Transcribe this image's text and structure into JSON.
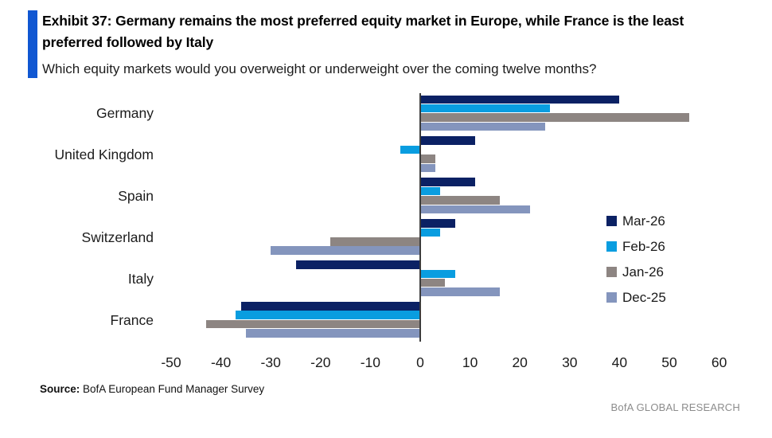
{
  "header": {
    "exhibit_title": "Exhibit 37: Germany remains the most preferred equity market in Europe, while France is the least preferred followed by Italy",
    "subtitle": "Which equity markets would you overweight or underweight over the coming twelve months?",
    "accent_color": "#1057d2"
  },
  "chart_data": {
    "type": "bar",
    "orientation": "horizontal",
    "title": "Exhibit 37: Germany remains the most preferred equity market in Europe, while France is the least preferred followed by Italy",
    "subtitle": "Which equity markets would you overweight or underweight over the coming twelve months?",
    "categories": [
      "Germany",
      "United Kingdom",
      "Spain",
      "Switzerland",
      "Italy",
      "France"
    ],
    "series": [
      {
        "name": "Mar-26",
        "color": "#0b2164",
        "values": [
          40,
          11,
          11,
          7,
          -25,
          -36
        ]
      },
      {
        "name": "Feb-26",
        "color": "#099de0",
        "values": [
          26,
          -4,
          4,
          4,
          7,
          -37
        ]
      },
      {
        "name": "Jan-26",
        "color": "#8d8582",
        "values": [
          54,
          3,
          16,
          -18,
          5,
          -43
        ]
      },
      {
        "name": "Dec-25",
        "color": "#8495bd",
        "values": [
          25,
          3,
          22,
          -30,
          16,
          -35
        ]
      }
    ],
    "x_ticks": [
      -50,
      -40,
      -30,
      -20,
      -10,
      0,
      10,
      20,
      30,
      40,
      50,
      60
    ],
    "xlim": [
      -50,
      60
    ],
    "grid": false,
    "legend_position": "right",
    "axis_line_color": "#3c3c3c",
    "units": "net % of respondents"
  },
  "footer": {
    "source_label": "Source:",
    "source_text": " BofA European Fund Manager Survey",
    "brand": "BofA GLOBAL RESEARCH"
  }
}
